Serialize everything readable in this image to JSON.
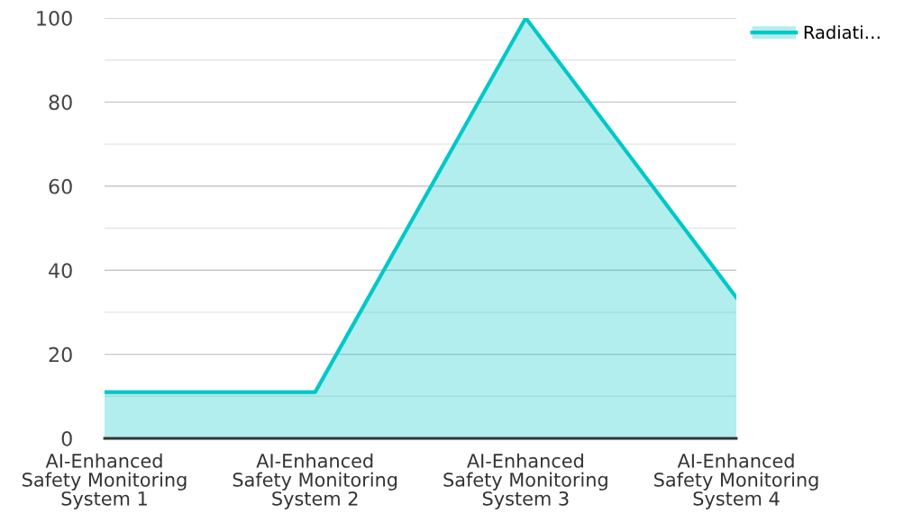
{
  "chart_data": {
    "type": "area",
    "categories": [
      "AI-Enhanced\nSafety Monitoring\nSystem 1",
      "AI-Enhanced\nSafety Monitoring\nSystem 2",
      "AI-Enhanced\nSafety Monitoring\nSystem 3",
      "AI-Enhanced\nSafety Monitoring\nSystem 4"
    ],
    "series": [
      {
        "name": "Radiati…",
        "color": "#00c8c8",
        "values": [
          11,
          11,
          100,
          33.5
        ]
      }
    ],
    "ylim": [
      0,
      100
    ],
    "yticks": [
      0,
      {
        "value": 10,
        "label": null
      },
      20,
      {
        "value": 30,
        "label": null
      },
      40,
      {
        "value": 50,
        "label": null
      },
      60,
      {
        "value": 70,
        "label": null
      },
      80,
      {
        "value": 90,
        "label": null
      },
      100
    ],
    "grid": "y",
    "legend": "top right"
  }
}
